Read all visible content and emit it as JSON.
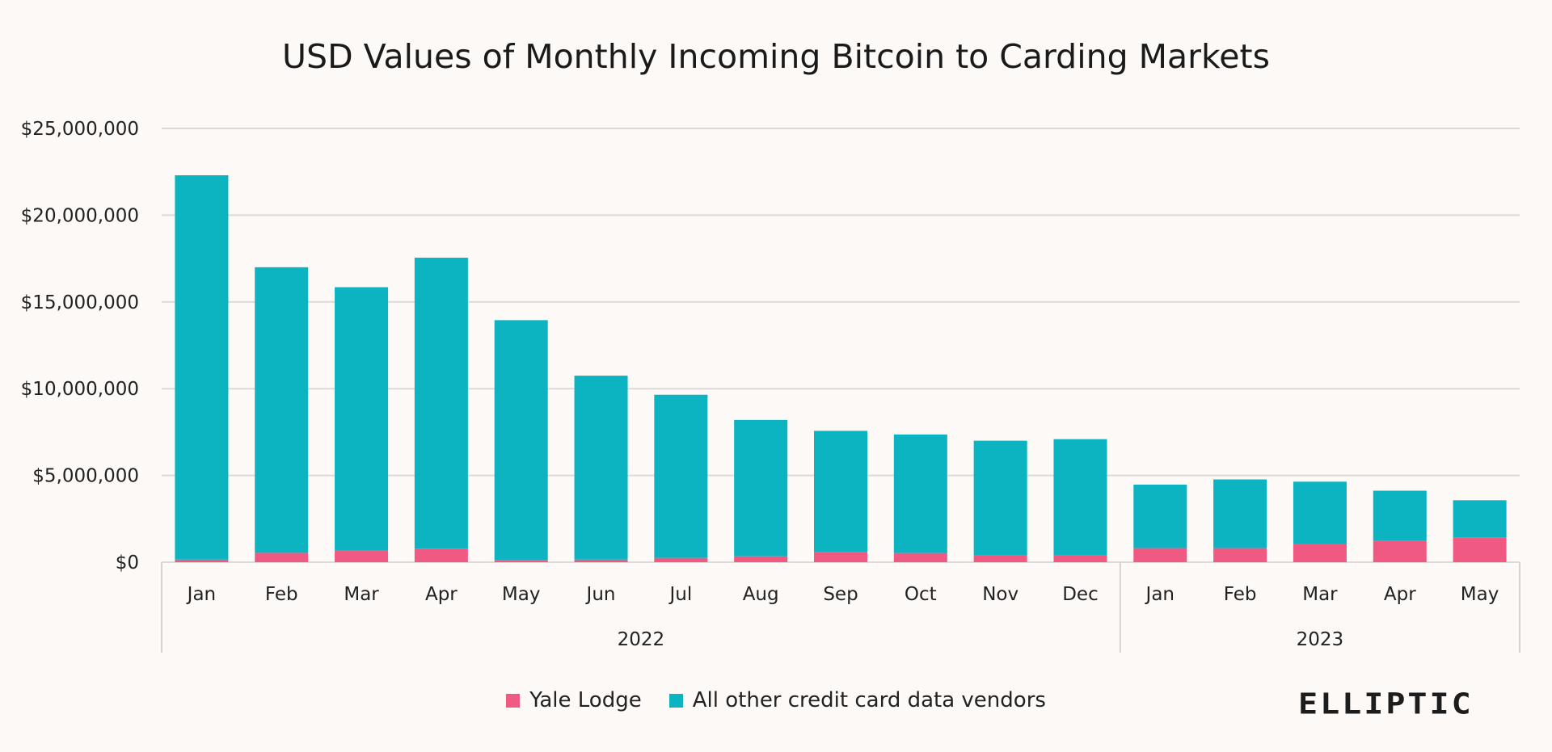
{
  "chart_data": {
    "type": "bar",
    "stacked": true,
    "title": "USD Values of Monthly Incoming Bitcoin to Carding Markets",
    "categories": [
      "Jan",
      "Feb",
      "Mar",
      "Apr",
      "May",
      "Jun",
      "Jul",
      "Aug",
      "Sep",
      "Oct",
      "Nov",
      "Dec",
      "Jan",
      "Feb",
      "Mar",
      "Apr",
      "May"
    ],
    "groups": [
      {
        "label": "2022",
        "count": 12
      },
      {
        "label": "2023",
        "count": 5
      }
    ],
    "series": [
      {
        "name": "Yale Lodge",
        "color": "#f05a82",
        "values": [
          150000,
          540000,
          680000,
          780000,
          130000,
          150000,
          250000,
          340000,
          590000,
          530000,
          400000,
          400000,
          810000,
          810000,
          1050000,
          1240000,
          1410000
        ]
      },
      {
        "name": "All other credit card data vendors",
        "color": "#0cb4c1",
        "values": [
          22150000,
          16460000,
          15170000,
          16770000,
          13820000,
          10600000,
          9400000,
          7860000,
          6980000,
          6830000,
          6600000,
          6690000,
          3660000,
          3960000,
          3590000,
          2880000,
          2160000
        ]
      }
    ],
    "ylim": [
      0,
      25000000
    ],
    "yticks": [
      "$0",
      "$5,000,000",
      "$10,000,000",
      "$15,000,000",
      "$20,000,000",
      "$25,000,000"
    ],
    "grid": true,
    "legend": "bottom"
  },
  "logo": "ELLIPTIC"
}
